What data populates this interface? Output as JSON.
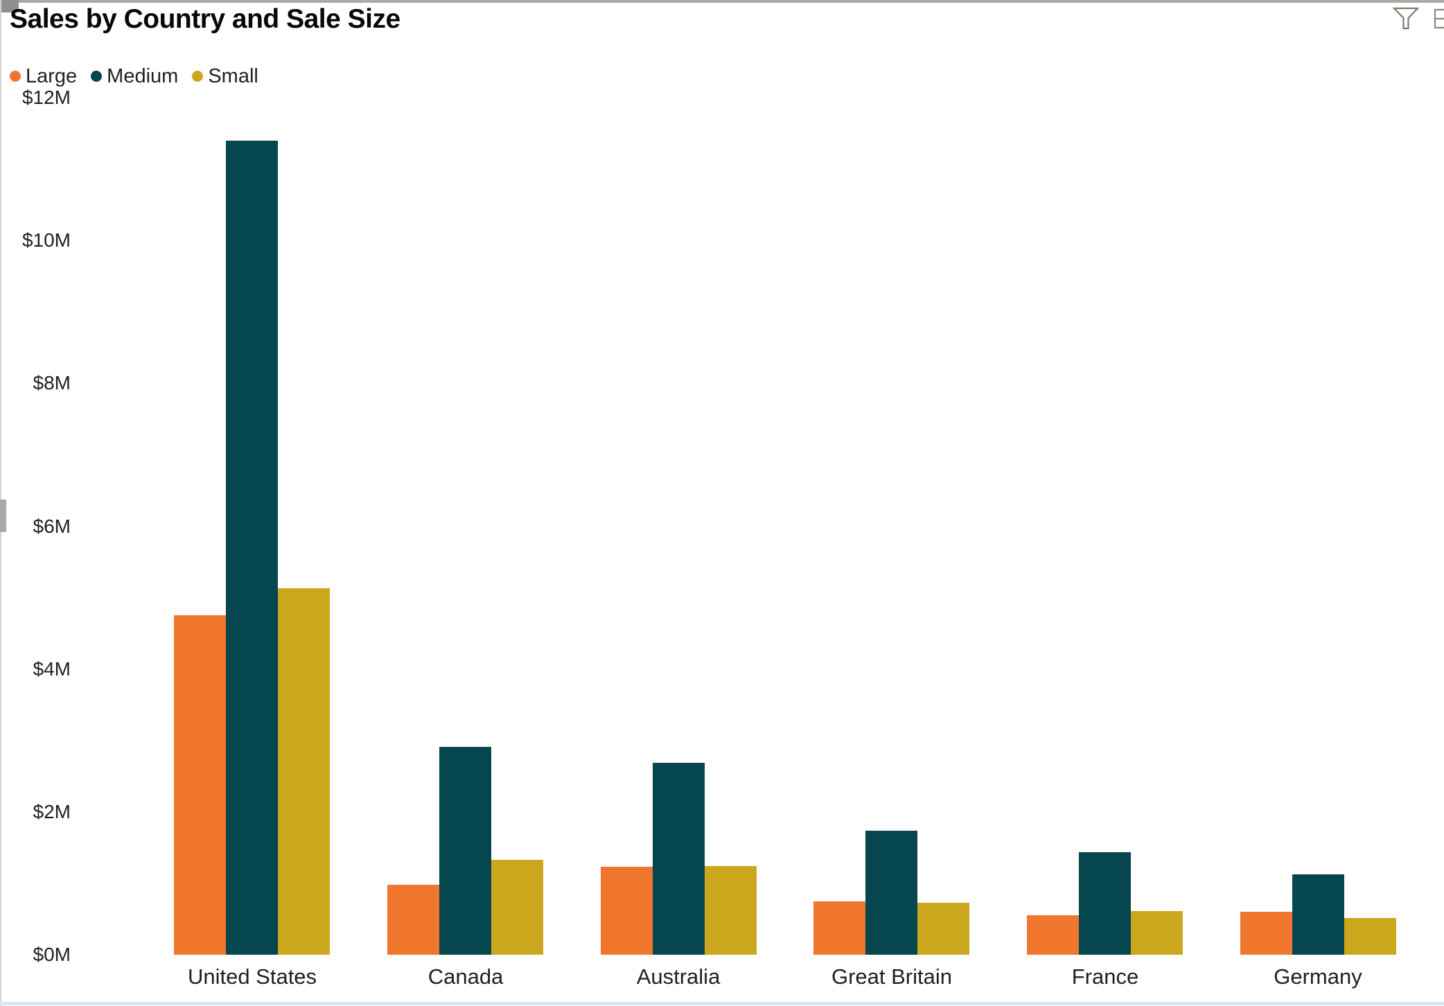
{
  "toolbar": {
    "icons": [
      "filter-icon",
      "clipped-panel-icon"
    ]
  },
  "chart_data": {
    "type": "bar",
    "title": "Sales by Country and Sale Size",
    "categories": [
      "United States",
      "Canada",
      "Australia",
      "Great Britain",
      "France",
      "Germany"
    ],
    "series": [
      {
        "name": "Large",
        "color": "#F1762D",
        "values": [
          4.75,
          0.98,
          1.23,
          0.75,
          0.55,
          0.6
        ]
      },
      {
        "name": "Medium",
        "color": "#05464F",
        "values": [
          11.4,
          2.91,
          2.69,
          1.74,
          1.44,
          1.13
        ]
      },
      {
        "name": "Small",
        "color": "#CBA71D",
        "values": [
          5.13,
          1.33,
          1.24,
          0.73,
          0.61,
          0.51
        ]
      }
    ],
    "unit": "$M",
    "y_ticks": [
      "$0M",
      "$2M",
      "$4M",
      "$6M",
      "$8M",
      "$10M",
      "$12M"
    ],
    "ylim": [
      0,
      12
    ],
    "xlabel": "",
    "ylabel": "",
    "legend_position": "top-left",
    "grid": false
  }
}
